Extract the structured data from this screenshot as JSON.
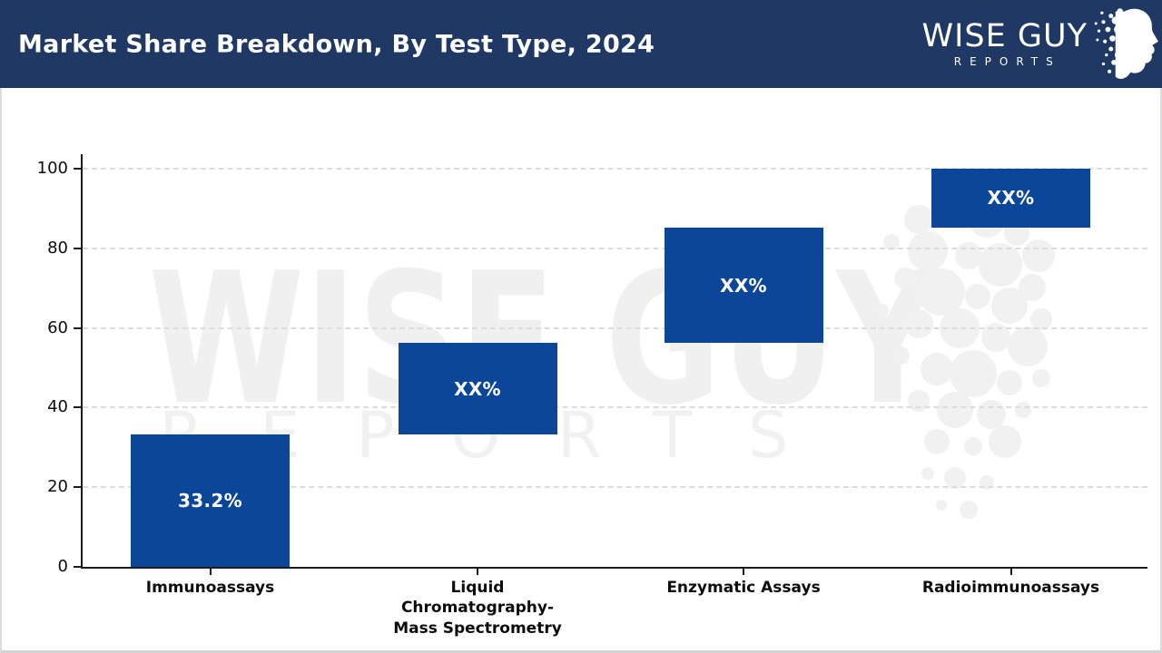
{
  "header": {
    "title": "Market Share Breakdown, By Test Type, 2024",
    "bg_color": "#1f3864",
    "logo": {
      "line1": "WISE GUY",
      "line2": "REPORTS"
    }
  },
  "watermark": {
    "line1": "WISE GUY",
    "line2": "REPORTS"
  },
  "chart_data": {
    "type": "bar",
    "variant": "waterfall",
    "title": "Market Share Breakdown, By Test Type, 2024",
    "categories": [
      "Immunoassays",
      "Liquid Chromatography-Mass Spectrometry",
      "Enzymatic Assays",
      "Radioimmunoassays"
    ],
    "category_label_lines": [
      [
        "Immunoassays"
      ],
      [
        "Liquid",
        "Chromatography-",
        "Mass Spectrometry"
      ],
      [
        "Enzymatic Assays"
      ],
      [
        "Radioimmunoassays"
      ]
    ],
    "series": [
      {
        "category": "Immunoassays",
        "start": 0,
        "end": 33.2,
        "label": "33.2%"
      },
      {
        "category": "Liquid Chromatography-Mass Spectrometry",
        "start": 33.2,
        "end": 56.2,
        "label": "XX%"
      },
      {
        "category": "Enzymatic Assays",
        "start": 56.2,
        "end": 85.2,
        "label": "XX%"
      },
      {
        "category": "Radioimmunoassays",
        "start": 85.2,
        "end": 100,
        "label": "XX%"
      }
    ],
    "ylim": [
      0,
      100
    ],
    "y_ticks": [
      0,
      20,
      40,
      60,
      80,
      100
    ],
    "grid": "horizontal-dashed",
    "legend": "none",
    "bar_color": "#0c4699",
    "bar_label_color": "#ffffff",
    "units": "percent"
  }
}
